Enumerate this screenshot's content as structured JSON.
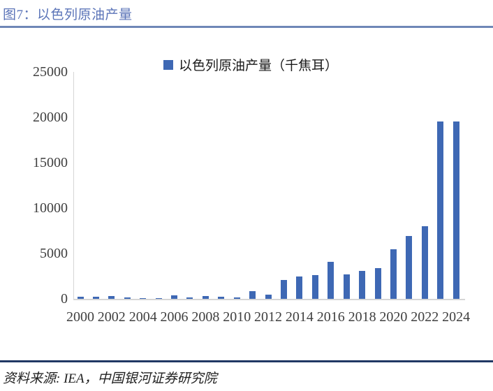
{
  "header": {
    "title": "图7：以色列原油产量"
  },
  "footer": {
    "source": "资料来源: IEA，中国银河证券研究院"
  },
  "colors": {
    "bar": "#3e68b4",
    "title_text": "#5b74b8",
    "top_rule": "#6f87b7",
    "bottom_rule": "#203864",
    "axis_line": "#d6d6d6",
    "tick_text": "#404040"
  },
  "chart_data": {
    "type": "bar",
    "title": "以色列原油产量",
    "legend": [
      "以色列原油产量（千焦耳）"
    ],
    "legend_position": "top-center",
    "grid": false,
    "ylabel": "",
    "xlabel": "",
    "ylim": [
      0,
      25000
    ],
    "yticks": [
      0,
      5000,
      10000,
      15000,
      20000,
      25000
    ],
    "categories": [
      2000,
      2001,
      2002,
      2003,
      2004,
      2005,
      2006,
      2007,
      2008,
      2009,
      2010,
      2011,
      2012,
      2013,
      2014,
      2015,
      2016,
      2017,
      2018,
      2019,
      2020,
      2021,
      2022,
      2023,
      2024
    ],
    "values": [
      230,
      230,
      310,
      130,
      110,
      110,
      360,
      190,
      310,
      260,
      190,
      830,
      450,
      2100,
      2450,
      2650,
      4050,
      2700,
      3050,
      3400,
      5450,
      6900,
      8000,
      19500,
      19500
    ],
    "xtick_labels": [
      "2000",
      "2002",
      "2004",
      "2006",
      "2008",
      "2010",
      "2012",
      "2014",
      "2016",
      "2018",
      "2020",
      "2022",
      "2024"
    ]
  }
}
